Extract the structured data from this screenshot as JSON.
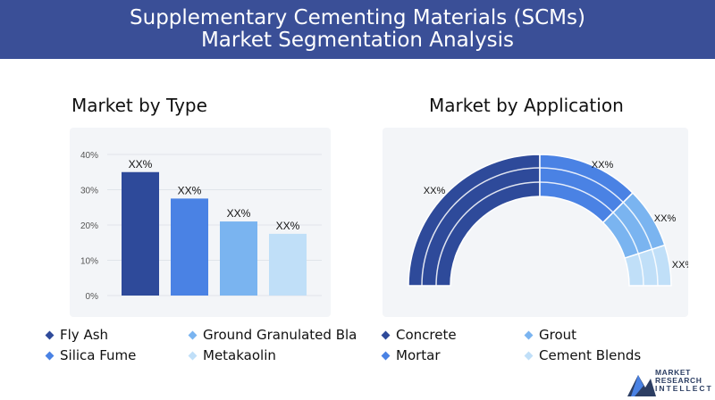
{
  "header": {
    "title": "Supplementary Cementing Materials (SCMs) Market Segmentation Analysis"
  },
  "left_section": {
    "title": "Market by Type"
  },
  "right_section": {
    "title": "Market by Application"
  },
  "colors": {
    "header_bg": "#3a4f97",
    "series": [
      "#2e4a9a",
      "#4a82e4",
      "#7ab4f0",
      "#c0dff8"
    ]
  },
  "chart_data": [
    {
      "type": "bar",
      "title": "Market by Type",
      "categories": [
        "Fly Ash",
        "Ground Granulated Bla",
        "Silica Fume",
        "Metakaolin"
      ],
      "values": [
        35,
        27.5,
        21,
        17.5
      ],
      "data_labels": [
        "XX%",
        "XX%",
        "XX%",
        "XX%"
      ],
      "yticks": [
        "0%",
        "10%",
        "20%",
        "30%",
        "40%"
      ],
      "ylim": [
        0,
        40
      ],
      "grid": true,
      "legend": "bottom"
    },
    {
      "type": "pie",
      "subtype": "semi-donut",
      "title": "Market by Application",
      "categories": [
        "Concrete",
        "Grout",
        "Mortar",
        "Cement Blends"
      ],
      "values": [
        50,
        25,
        15,
        10
      ],
      "data_labels": [
        "XX%",
        "XX%",
        "XX%",
        "XX%"
      ],
      "legend": "bottom"
    }
  ],
  "legend_left": [
    {
      "label": "Fly Ash",
      "color": "#2e4a9a"
    },
    {
      "label": "Ground Granulated Bla",
      "color": "#7ab4f0"
    },
    {
      "label": "Silica Fume",
      "color": "#4a82e4"
    },
    {
      "label": "Metakaolin",
      "color": "#c0dff8"
    }
  ],
  "legend_right": [
    {
      "label": "Concrete",
      "color": "#2e4a9a"
    },
    {
      "label": "Grout",
      "color": "#7ab4f0"
    },
    {
      "label": "Mortar",
      "color": "#4a82e4"
    },
    {
      "label": "Cement Blends",
      "color": "#c0dff8"
    }
  ],
  "logo": {
    "line1": "MARKET",
    "line2": "RESEARCH",
    "line3": "INTELLECT"
  }
}
